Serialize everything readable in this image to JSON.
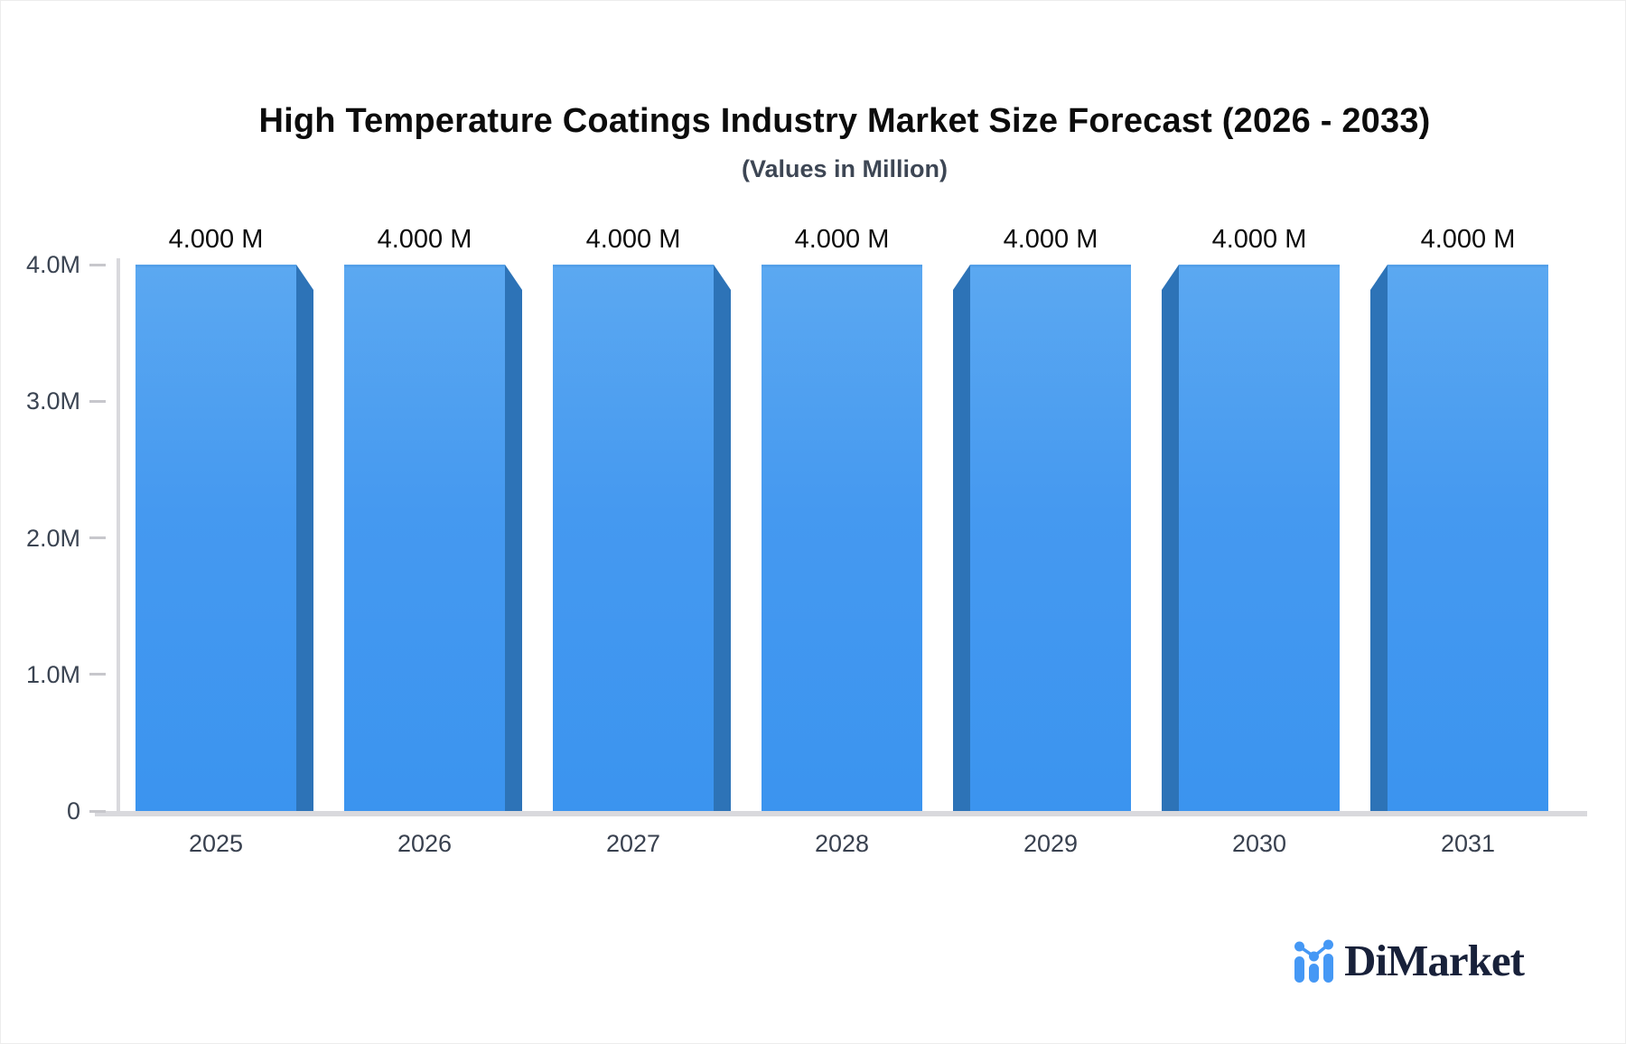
{
  "chart_data": {
    "type": "bar",
    "title": "High Temperature Coatings Industry Market Size Forecast (2026 - 2033)",
    "subtitle": "(Values in Million)",
    "categories": [
      "2025",
      "2026",
      "2027",
      "2028",
      "2029",
      "2030",
      "2031"
    ],
    "values": [
      4.0,
      4.0,
      4.0,
      4.0,
      4.0,
      4.0,
      4.0
    ],
    "value_labels": [
      "4.000 M",
      "4.000 M",
      "4.000 M",
      "4.000 M",
      "4.000 M",
      "4.000 M",
      "4.000 M"
    ],
    "unit": "Million",
    "ylim": [
      0,
      4.0
    ],
    "yticks": [
      {
        "label": "0",
        "value": 0
      },
      {
        "label": "1.0M",
        "value": 1.0
      },
      {
        "label": "2.0M",
        "value": 2.0
      },
      {
        "label": "3.0M",
        "value": 3.0
      },
      {
        "label": "4.0M",
        "value": 4.0
      }
    ],
    "grid": false,
    "legend": false,
    "style_3d": true,
    "colors": {
      "bar_face_top": "#5ba8f1",
      "bar_face_bottom": "#3b94ef",
      "bar_side": "#2d73b7",
      "axis_line": "#d9d9dd",
      "tick_dash": "#c7c7cc",
      "tick_text": "#3b4452",
      "value_text": "#0d0d0d",
      "title_text": "#0c0c0c",
      "subtitle_text": "#3d4654"
    }
  },
  "branding": {
    "logo_text": "DiMarket",
    "logo_icon": "bar-line-chart-icon",
    "logo_text_color": "#18213a",
    "logo_icon_color": "#4598f5"
  }
}
